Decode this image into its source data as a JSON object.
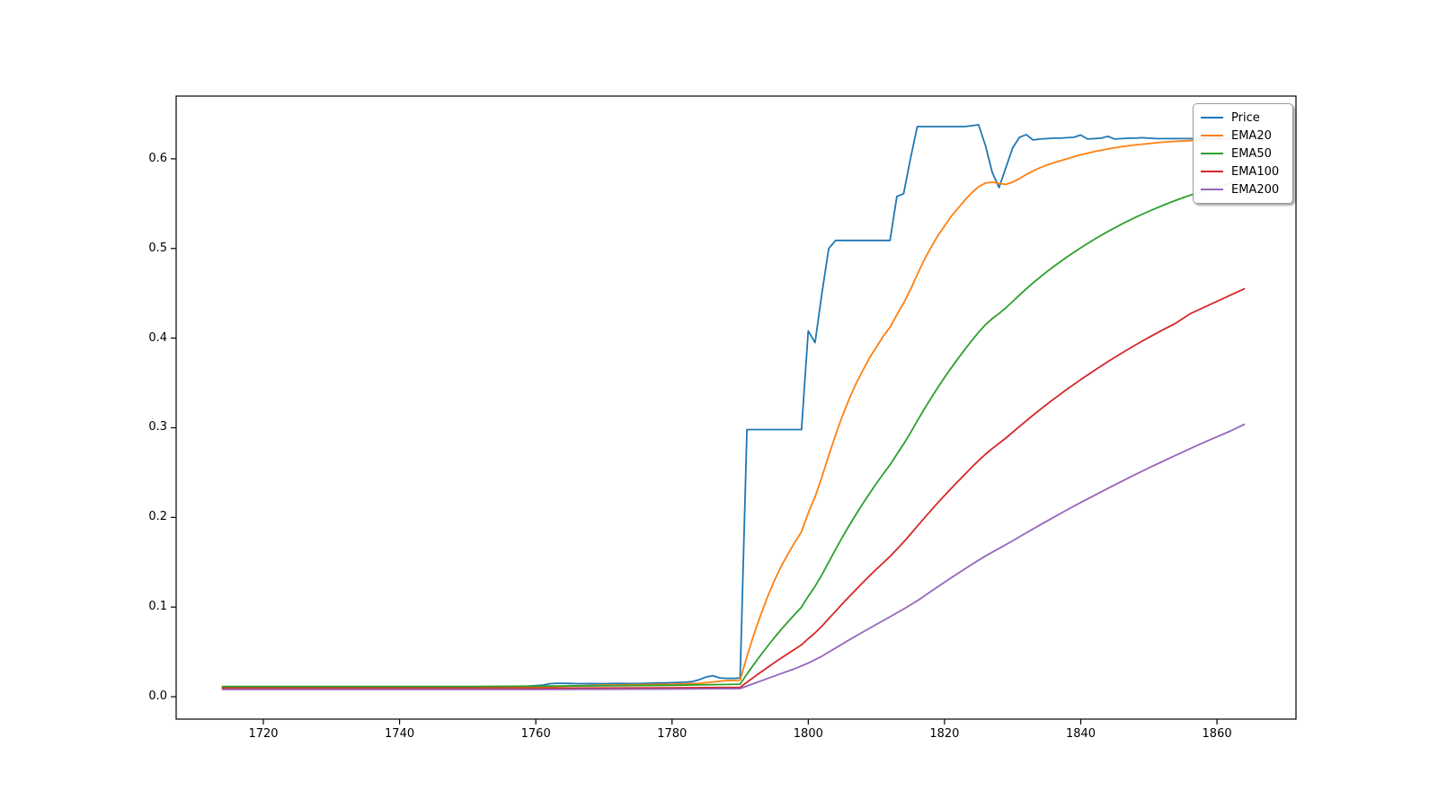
{
  "figure": {
    "background": "#ffffff",
    "text_color": "#000000",
    "spine_color": "#000000"
  },
  "chart_data": {
    "type": "line",
    "title": "",
    "xlabel": "",
    "ylabel": "",
    "grid": false,
    "xlim": [
      1707.2,
      1871.6
    ],
    "ylim": [
      -0.025,
      0.67
    ],
    "x_ticks": [
      1720,
      1740,
      1760,
      1780,
      1800,
      1820,
      1840,
      1860
    ],
    "x_tick_labels": [
      "1720",
      "1740",
      "1760",
      "1780",
      "1800",
      "1820",
      "1840",
      "1860"
    ],
    "y_ticks": [
      0.0,
      0.1,
      0.2,
      0.3,
      0.4,
      0.5,
      0.6
    ],
    "y_tick_labels": [
      "0.0",
      "0.1",
      "0.2",
      "0.3",
      "0.4",
      "0.5",
      "0.6"
    ],
    "legend": {
      "location": "upper right"
    },
    "series": [
      {
        "name": "Price",
        "color": "#1f77b4",
        "x_start": 1714,
        "x_step": 1,
        "y": [
          0.01,
          0.01,
          0.01,
          0.01,
          0.01,
          0.01,
          0.01,
          0.01,
          0.01,
          0.01,
          0.01,
          0.01,
          0.01,
          0.01,
          0.01,
          0.01,
          0.01,
          0.01,
          0.01,
          0.01,
          0.01,
          0.01,
          0.01,
          0.01,
          0.01,
          0.01,
          0.01,
          0.01,
          0.01,
          0.01,
          0.01,
          0.01,
          0.01,
          0.01,
          0.01,
          0.01,
          0.01,
          0.01,
          0.01,
          0.01,
          0.01,
          0.01,
          0.0105,
          0.011,
          0.0115,
          0.012,
          0.0125,
          0.013,
          0.0145,
          0.015,
          0.015,
          0.0148,
          0.0146,
          0.0146,
          0.0147,
          0.0146,
          0.0146,
          0.0147,
          0.0148,
          0.0148,
          0.0147,
          0.0147,
          0.015,
          0.0152,
          0.0154,
          0.0155,
          0.0157,
          0.016,
          0.0162,
          0.017,
          0.019,
          0.022,
          0.0235,
          0.021,
          0.0205,
          0.0205,
          0.021,
          0.298,
          0.298,
          0.298,
          0.298,
          0.298,
          0.298,
          0.298,
          0.298,
          0.298,
          0.408,
          0.395,
          0.45,
          0.5,
          0.509,
          0.509,
          0.509,
          0.509,
          0.509,
          0.509,
          0.509,
          0.509,
          0.509,
          0.558,
          0.561,
          0.6,
          0.636,
          0.636,
          0.636,
          0.636,
          0.636,
          0.636,
          0.636,
          0.636,
          0.637,
          0.638,
          0.615,
          0.585,
          0.568,
          0.59,
          0.612,
          0.624,
          0.627,
          0.621,
          0.622,
          0.6225,
          0.623,
          0.623,
          0.6235,
          0.624,
          0.6265,
          0.622,
          0.6225,
          0.623,
          0.625,
          0.622,
          0.6225,
          0.623,
          0.623,
          0.6235,
          0.623,
          0.6225,
          0.6225,
          0.6225,
          0.6225,
          0.6225,
          0.6225,
          0.6225,
          0.6225,
          0.6225,
          0.6225,
          0.6225,
          0.6225,
          0.6225,
          0.6225
        ]
      },
      {
        "name": "EMA20",
        "color": "#ff7f0e",
        "x": [
          1714,
          1750,
          1760,
          1770,
          1780,
          1784,
          1786,
          1788,
          1790,
          1791,
          1792,
          1793,
          1794,
          1795,
          1796,
          1797,
          1798,
          1799,
          1800,
          1801,
          1802,
          1803,
          1804,
          1805,
          1806,
          1807,
          1808,
          1809,
          1810,
          1811,
          1812,
          1813,
          1814,
          1815,
          1816,
          1817,
          1818,
          1819,
          1820,
          1821,
          1822,
          1823,
          1824,
          1825,
          1826,
          1827,
          1828,
          1829,
          1830,
          1831,
          1832,
          1833,
          1834,
          1835,
          1836,
          1838,
          1840,
          1842,
          1844,
          1846,
          1848,
          1850,
          1852,
          1854,
          1856,
          1858,
          1860,
          1862,
          1864
        ],
        "y": [
          0.0105,
          0.0105,
          0.011,
          0.013,
          0.014,
          0.015,
          0.0165,
          0.018,
          0.0185,
          0.045,
          0.069,
          0.091,
          0.111,
          0.129,
          0.145,
          0.159,
          0.172,
          0.184,
          0.205,
          0.223,
          0.245,
          0.269,
          0.292,
          0.313,
          0.332,
          0.349,
          0.364,
          0.378,
          0.39,
          0.402,
          0.412,
          0.426,
          0.439,
          0.454,
          0.471,
          0.487,
          0.501,
          0.514,
          0.525,
          0.536,
          0.545,
          0.554,
          0.562,
          0.569,
          0.573,
          0.574,
          0.5725,
          0.5715,
          0.574,
          0.578,
          0.5825,
          0.5865,
          0.59,
          0.593,
          0.5955,
          0.6,
          0.6045,
          0.608,
          0.611,
          0.6135,
          0.6155,
          0.617,
          0.6185,
          0.6195,
          0.6202,
          0.6208,
          0.6213,
          0.6217,
          0.622
        ]
      },
      {
        "name": "EMA50",
        "color": "#2ca02c",
        "x": [
          1714,
          1750,
          1770,
          1780,
          1786,
          1790,
          1791,
          1792,
          1793,
          1794,
          1795,
          1796,
          1797,
          1798,
          1799,
          1800,
          1801,
          1802,
          1803,
          1804,
          1805,
          1806,
          1807,
          1808,
          1809,
          1810,
          1811,
          1812,
          1813,
          1814,
          1815,
          1816,
          1817,
          1818,
          1819,
          1820,
          1821,
          1822,
          1823,
          1824,
          1825,
          1826,
          1827,
          1828,
          1829,
          1830,
          1831,
          1832,
          1833,
          1834,
          1835,
          1836,
          1838,
          1840,
          1842,
          1844,
          1846,
          1848,
          1850,
          1852,
          1854,
          1856,
          1858,
          1860,
          1862,
          1864
        ],
        "y": [
          0.0115,
          0.0115,
          0.0122,
          0.0128,
          0.0135,
          0.014,
          0.0252,
          0.0359,
          0.0462,
          0.0561,
          0.0656,
          0.0747,
          0.0834,
          0.0918,
          0.0999,
          0.112,
          0.1231,
          0.1359,
          0.1502,
          0.1643,
          0.1778,
          0.1908,
          0.2033,
          0.2153,
          0.2268,
          0.2379,
          0.2485,
          0.2587,
          0.2704,
          0.2818,
          0.2943,
          0.3077,
          0.3205,
          0.3328,
          0.3446,
          0.356,
          0.3669,
          0.3774,
          0.3875,
          0.3972,
          0.4065,
          0.4148,
          0.4217,
          0.4275,
          0.4338,
          0.4408,
          0.448,
          0.455,
          0.4615,
          0.4678,
          0.4739,
          0.4797,
          0.4906,
          0.5008,
          0.5103,
          0.519,
          0.5271,
          0.5346,
          0.5415,
          0.5479,
          0.5538,
          0.5592,
          0.5642,
          0.5688,
          0.573,
          0.5769
        ]
      },
      {
        "name": "EMA100",
        "color": "#d62728",
        "x": [
          1714,
          1760,
          1780,
          1790,
          1791,
          1792,
          1793,
          1794,
          1795,
          1796,
          1797,
          1798,
          1799,
          1800,
          1801,
          1802,
          1803,
          1804,
          1805,
          1806,
          1807,
          1808,
          1809,
          1810,
          1811,
          1812,
          1813,
          1814,
          1815,
          1816,
          1817,
          1818,
          1819,
          1820,
          1821,
          1822,
          1823,
          1824,
          1825,
          1826,
          1827,
          1828,
          1829,
          1830,
          1831,
          1832,
          1833,
          1834,
          1835,
          1836,
          1838,
          1840,
          1842,
          1844,
          1846,
          1848,
          1850,
          1852,
          1854,
          1856,
          1858,
          1860,
          1862,
          1864
        ],
        "y": [
          0.0095,
          0.0095,
          0.01,
          0.0105,
          0.0162,
          0.0218,
          0.0272,
          0.0326,
          0.0378,
          0.043,
          0.048,
          0.0529,
          0.0578,
          0.0647,
          0.0712,
          0.0787,
          0.0871,
          0.0954,
          0.1036,
          0.1116,
          0.1195,
          0.1272,
          0.1348,
          0.1422,
          0.1494,
          0.1565,
          0.1645,
          0.1725,
          0.1812,
          0.1902,
          0.199,
          0.2076,
          0.2161,
          0.2244,
          0.2325,
          0.2404,
          0.2482,
          0.2559,
          0.2634,
          0.2704,
          0.2767,
          0.2825,
          0.2885,
          0.2949,
          0.3014,
          0.3078,
          0.314,
          0.3201,
          0.326,
          0.3318,
          0.343,
          0.3537,
          0.364,
          0.3738,
          0.3832,
          0.3922,
          0.4008,
          0.409,
          0.4168,
          0.427,
          0.434,
          0.441,
          0.448,
          0.455
        ]
      },
      {
        "name": "EMA200",
        "color": "#9467bd",
        "x": [
          1714,
          1760,
          1780,
          1790,
          1792,
          1794,
          1796,
          1798,
          1800,
          1802,
          1804,
          1806,
          1808,
          1810,
          1812,
          1814,
          1816,
          1818,
          1820,
          1822,
          1824,
          1826,
          1828,
          1830,
          1832,
          1834,
          1836,
          1838,
          1840,
          1842,
          1844,
          1846,
          1848,
          1850,
          1852,
          1854,
          1856,
          1858,
          1860,
          1862,
          1864
        ],
        "y": [
          0.008,
          0.008,
          0.0085,
          0.009,
          0.0147,
          0.0203,
          0.0258,
          0.0312,
          0.0375,
          0.0452,
          0.0543,
          0.0633,
          0.0721,
          0.0807,
          0.0892,
          0.0978,
          0.107,
          0.1174,
          0.1277,
          0.1377,
          0.1475,
          0.157,
          0.1654,
          0.1739,
          0.1828,
          0.1915,
          0.2,
          0.2084,
          0.2166,
          0.2246,
          0.2325,
          0.2402,
          0.2478,
          0.2552,
          0.2624,
          0.2695,
          0.2765,
          0.2833,
          0.2899,
          0.2965,
          0.3038
        ]
      }
    ]
  }
}
